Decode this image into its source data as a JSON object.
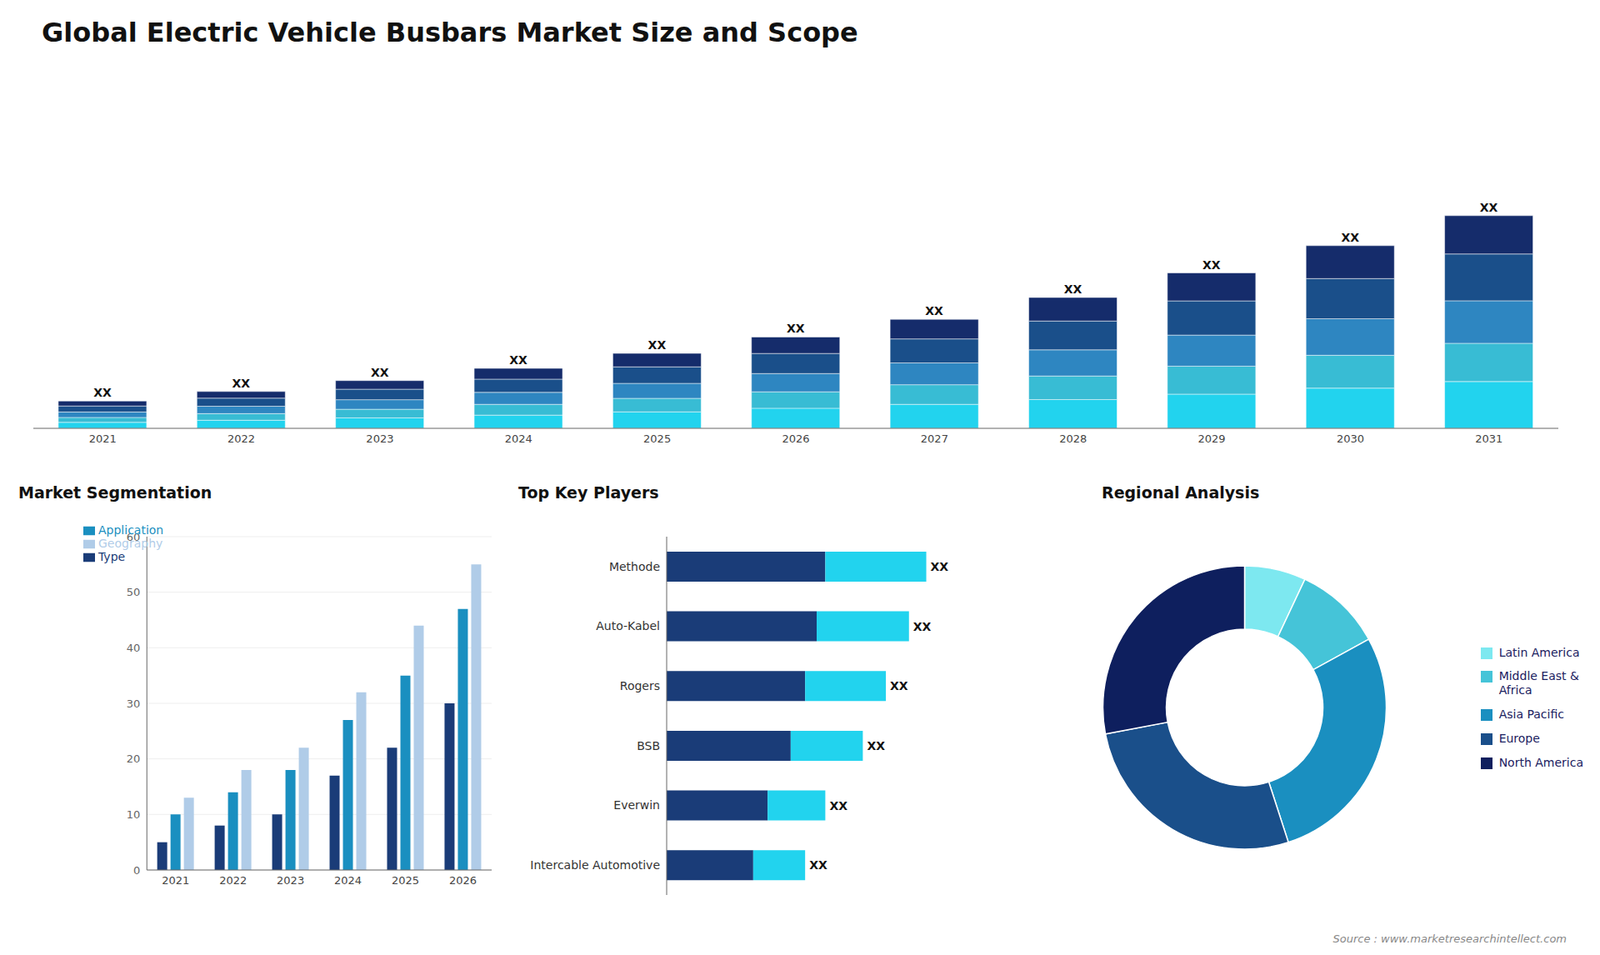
{
  "title": "Global Electric Vehicle Busbars Market Size and Scope",
  "annotations": [
    "Source : www.marketresearchintellect.com"
  ],
  "chart_data": [
    {
      "type": "bar",
      "stacked": true,
      "categories": [
        "2021",
        "2022",
        "2023",
        "2024",
        "2025",
        "2026",
        "2027",
        "2028",
        "2029",
        "2030",
        "2031"
      ],
      "series": [
        {
          "color": "#22d3ee",
          "values": [
            0.22,
            0.297,
            0.385,
            0.484,
            0.605,
            0.737,
            0.88,
            1.056,
            1.254,
            1.474,
            1.716
          ]
        },
        {
          "color": "#38bcd4",
          "values": [
            0.18,
            0.243,
            0.315,
            0.396,
            0.495,
            0.603,
            0.72,
            0.864,
            1.026,
            1.206,
            1.404
          ]
        },
        {
          "color": "#2e86c1",
          "values": [
            0.2,
            0.27,
            0.35,
            0.44,
            0.55,
            0.67,
            0.8,
            0.96,
            1.14,
            1.34,
            1.56
          ]
        },
        {
          "color": "#1a4f8a",
          "values": [
            0.22,
            0.297,
            0.385,
            0.484,
            0.605,
            0.737,
            0.88,
            1.056,
            1.254,
            1.474,
            1.716
          ]
        },
        {
          "color": "#152c6b",
          "values": [
            0.18,
            0.243,
            0.315,
            0.396,
            0.495,
            0.603,
            0.72,
            0.864,
            1.026,
            1.206,
            1.404
          ]
        }
      ],
      "ylim": [
        0,
        11.31
      ],
      "tick_labels": "x",
      "grid": false,
      "data_labels": true,
      "value_labels": [
        "XX",
        "XX",
        "XX",
        "XX",
        "XX",
        "XX",
        "XX",
        "XX",
        "XX",
        "XX",
        "XX"
      ]
    },
    {
      "type": "bar",
      "title": "Market Segmentation",
      "categories": [
        "2021",
        "2022",
        "2023",
        "2024",
        "2025",
        "2026"
      ],
      "series": [
        {
          "name": "Type",
          "color": "#1a3c78",
          "values": [
            5,
            8,
            10,
            17,
            22,
            30
          ]
        },
        {
          "name": "Application",
          "color": "#1a8fc0",
          "values": [
            10,
            14,
            18,
            27,
            35,
            47
          ]
        },
        {
          "name": "Geography",
          "color": "#b0cce8",
          "values": [
            13,
            18,
            22,
            32,
            44,
            55
          ]
        }
      ],
      "ylim": [
        0,
        60
      ],
      "yticks": [
        0,
        10,
        20,
        30,
        40,
        50,
        60
      ],
      "grid": true,
      "legend": "upper left"
    },
    {
      "type": "bar",
      "title": "Top Key Players",
      "orientation": "horizontal",
      "stacked": true,
      "categories": [
        "Methode",
        "Auto-Kabel",
        "Rogers",
        "BSB",
        "Everwin",
        "Intercable Automotive"
      ],
      "series": [
        {
          "color": "#1a3c78",
          "values": [
            5.5,
            5.2,
            4.8,
            4.3,
            3.5,
            3.0
          ]
        },
        {
          "color": "#22d3ee",
          "values": [
            3.5,
            3.2,
            2.8,
            2.5,
            2.0,
            1.8
          ]
        }
      ],
      "xlim": [
        0,
        13
      ],
      "tick_labels": "y",
      "grid": false,
      "data_labels": true,
      "value_labels": [
        "XX",
        "XX",
        "XX",
        "XX",
        "XX",
        "XX"
      ]
    },
    {
      "type": "pie",
      "title": "Regional Analysis",
      "categories": [
        "Latin America",
        "Middle East &\nAfrica",
        "Asia Pacific",
        "Europe",
        "North America"
      ],
      "values": [
        7,
        10,
        28,
        27,
        28
      ],
      "colors": [
        "#7de8f0",
        "#45c4d8",
        "#1a8fc0",
        "#1a4f8a",
        "#0e1f5e"
      ],
      "legend": "right"
    }
  ]
}
